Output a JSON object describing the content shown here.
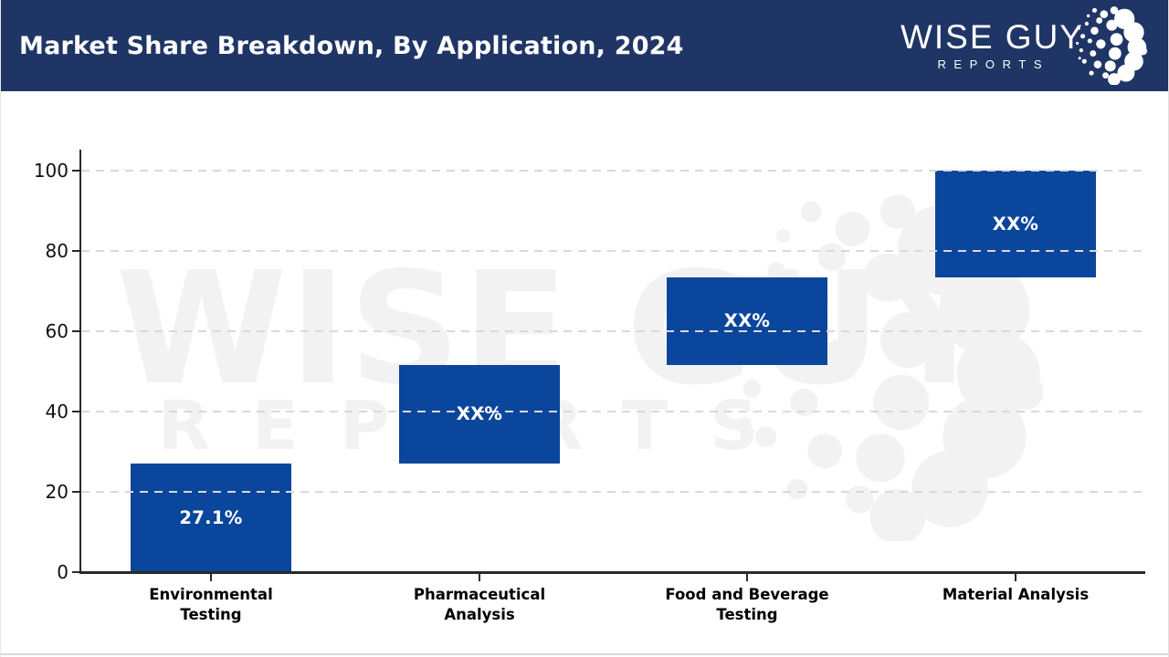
{
  "header": {
    "title": "Market Share Breakdown, By Application, 2024",
    "logo": {
      "line1": "WISE GUY",
      "line2": "REPORTS"
    }
  },
  "watermark": {
    "line1": "WISE GUY",
    "line2": "REPORTS"
  },
  "colors": {
    "header_bg": "#1f3565",
    "bar": "#0a469b",
    "grid": "#d9d9d9",
    "axis": "#2a2a2a",
    "bar_label": "#ffffff",
    "watermark": "#f2f2f2"
  },
  "chart_data": {
    "type": "bar",
    "subtype": "waterfall",
    "title": "Market Share Breakdown, By Application, 2024",
    "categories": [
      "Environmental\nTesting",
      "Pharmaceutical\nAnalysis",
      "Food and Beverage\nTesting",
      "Material Analysis"
    ],
    "segments": [
      {
        "category": "Environmental Testing",
        "start": 0,
        "end": 27.1,
        "value": 27.1,
        "label": "27.1%"
      },
      {
        "category": "Pharmaceutical Analysis",
        "start": 27.1,
        "end": 51.6,
        "value": 24.5,
        "label": "XX%"
      },
      {
        "category": "Food and Beverage Testing",
        "start": 51.6,
        "end": 73.5,
        "value": 21.9,
        "label": "XX%"
      },
      {
        "category": "Material Analysis",
        "start": 73.5,
        "end": 100,
        "value": 26.5,
        "label": "XX%"
      }
    ],
    "y_ticks": [
      0,
      20,
      40,
      60,
      80,
      100
    ],
    "ylim": [
      0,
      100
    ],
    "xlabel": "",
    "ylabel": "",
    "grid": "horizontal dashed, drawn over bars",
    "legend": "none",
    "bar_color": "#0a469b",
    "label_color": "#ffffff"
  }
}
